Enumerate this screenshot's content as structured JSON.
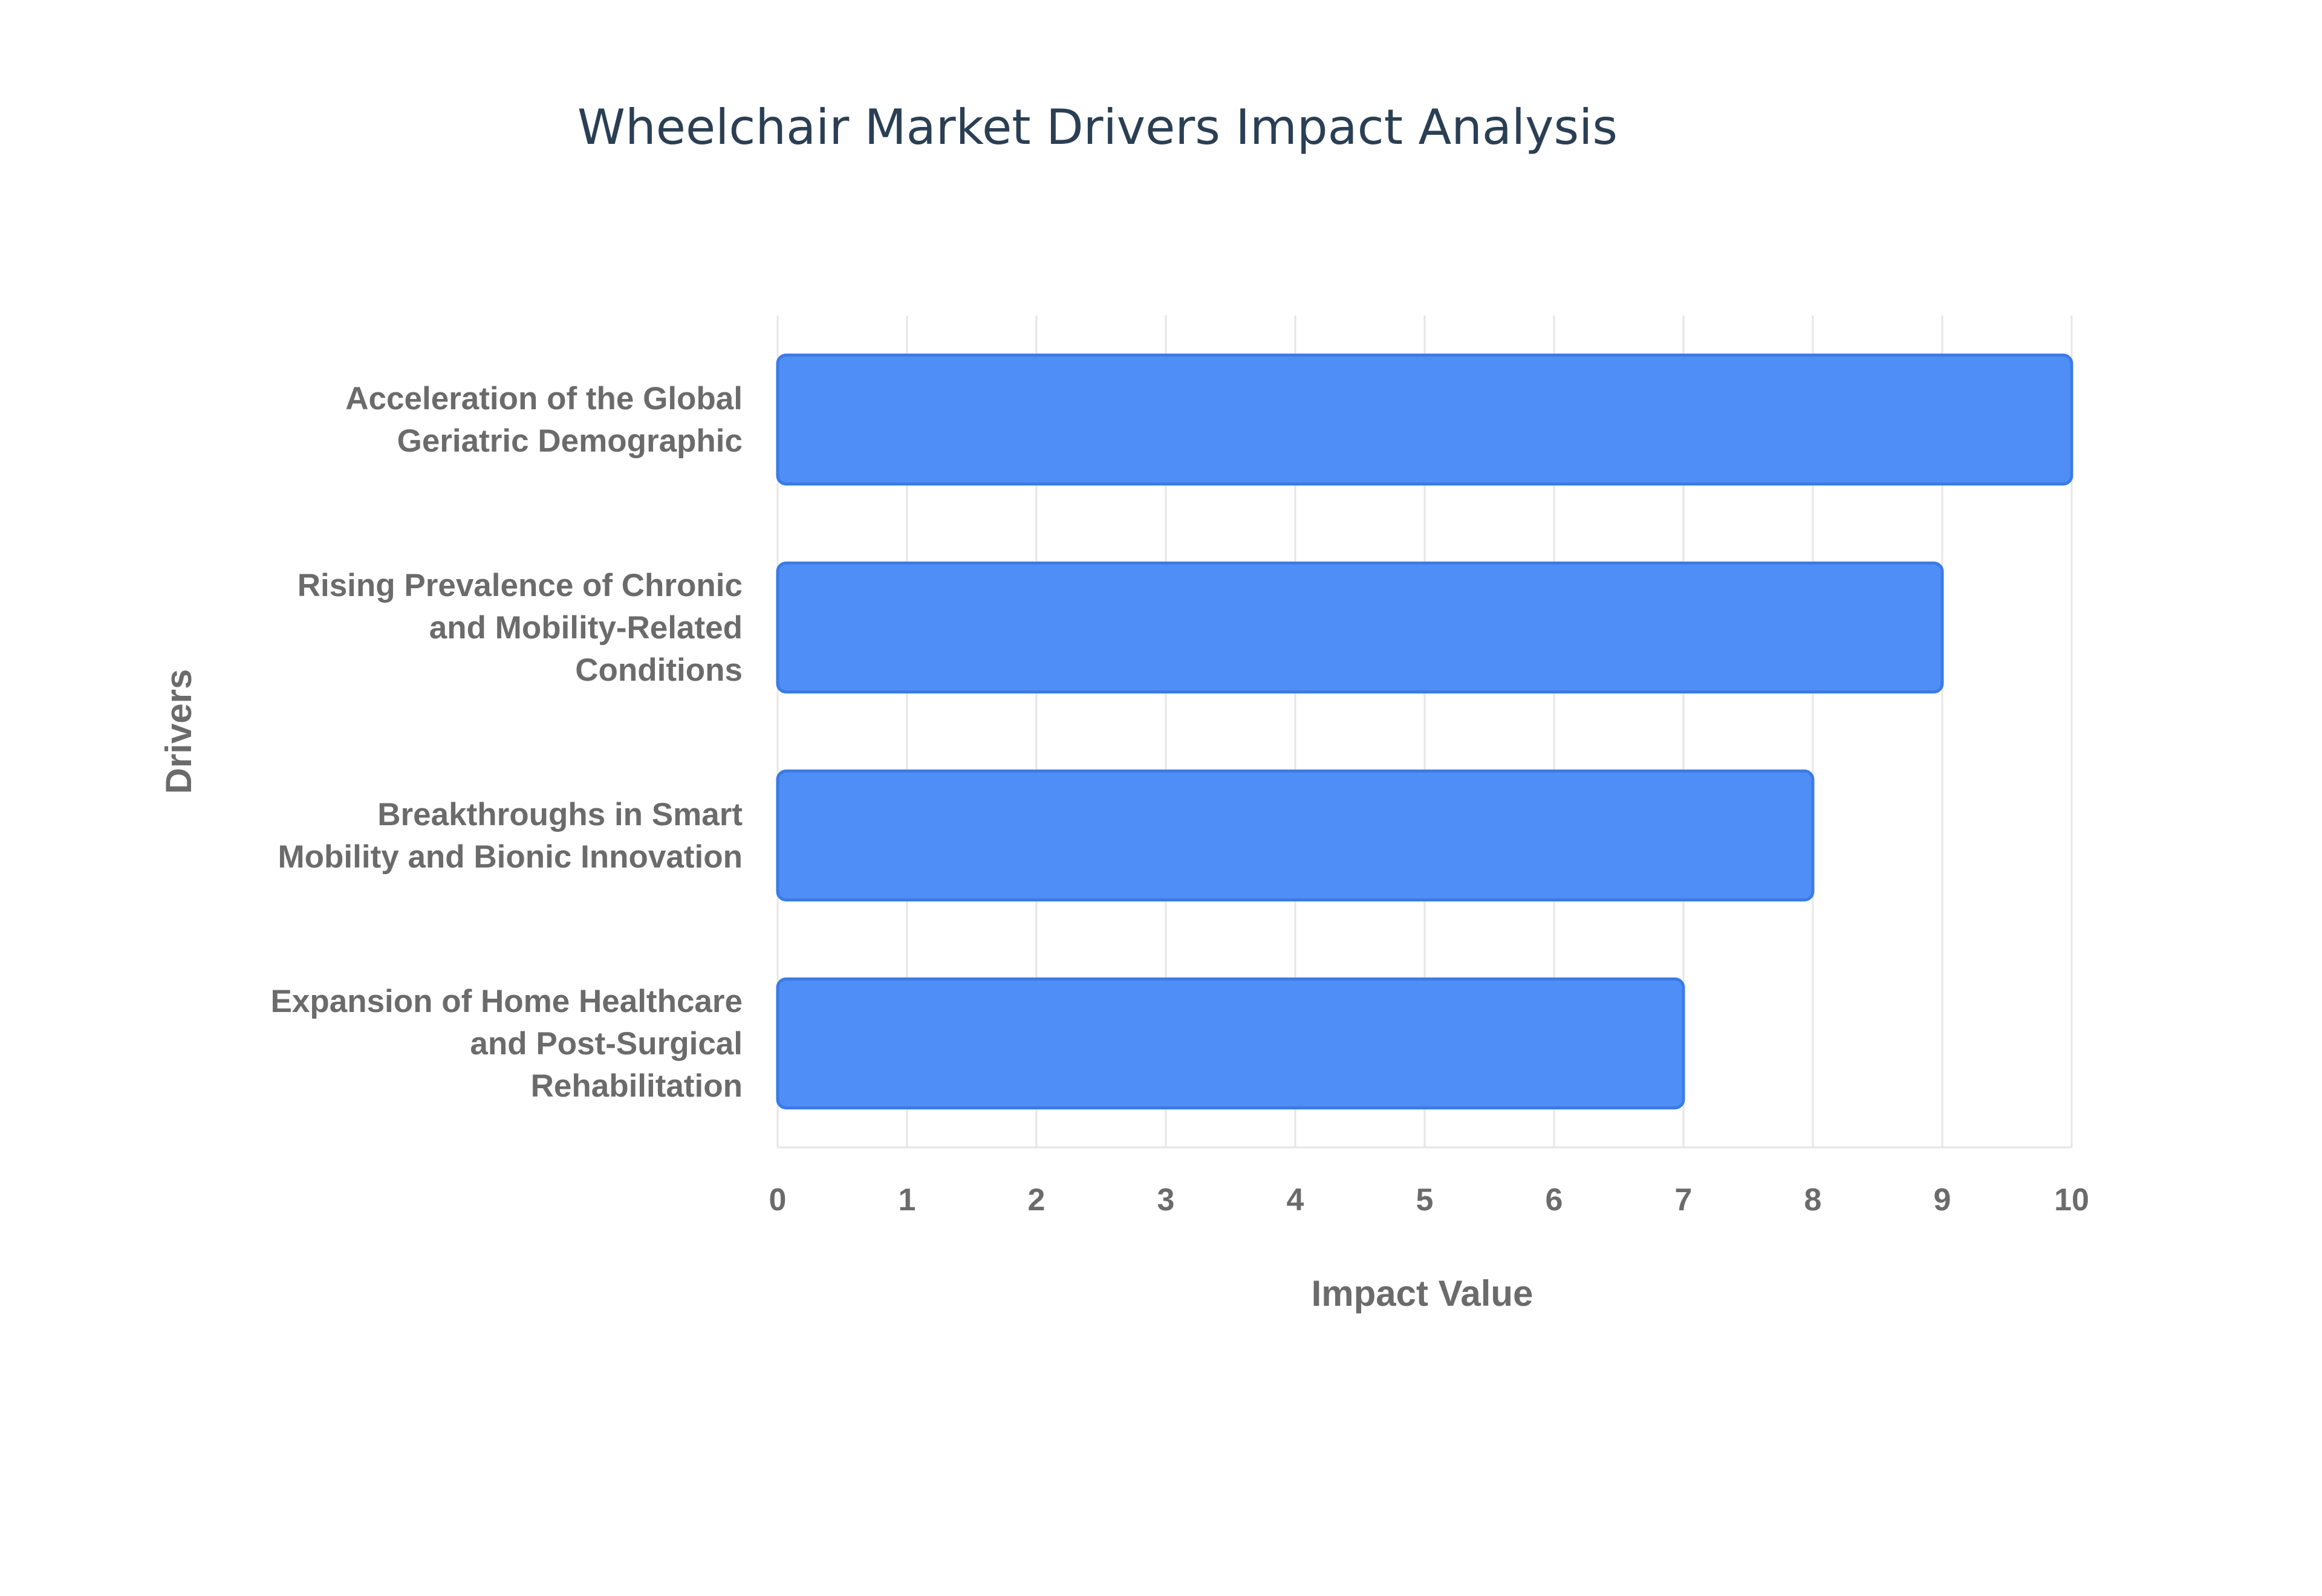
{
  "chart_data": {
    "type": "bar",
    "orientation": "horizontal",
    "title": "Wheelchair Market Drivers Impact Analysis",
    "xlabel": "Impact Value",
    "ylabel": "Drivers",
    "categories": [
      [
        "Acceleration of the Global",
        "Geriatric Demographic"
      ],
      [
        "Rising Prevalence of Chronic",
        "and Mobility-Related",
        "Conditions"
      ],
      [
        "Breakthroughs in Smart",
        "Mobility and Bionic Innovation"
      ],
      [
        "Expansion of Home Healthcare",
        "and Post-Surgical",
        "Rehabilitation"
      ]
    ],
    "values": [
      10,
      9,
      8,
      7
    ],
    "xlim": [
      0,
      10
    ],
    "xticks": [
      "0",
      "1",
      "2",
      "3",
      "4",
      "5",
      "6",
      "7",
      "8",
      "9",
      "10"
    ],
    "grid": true,
    "legend": "none",
    "colors": {
      "bar_fill": "#4f8ef7",
      "bar_stroke": "#3a7be6"
    }
  }
}
